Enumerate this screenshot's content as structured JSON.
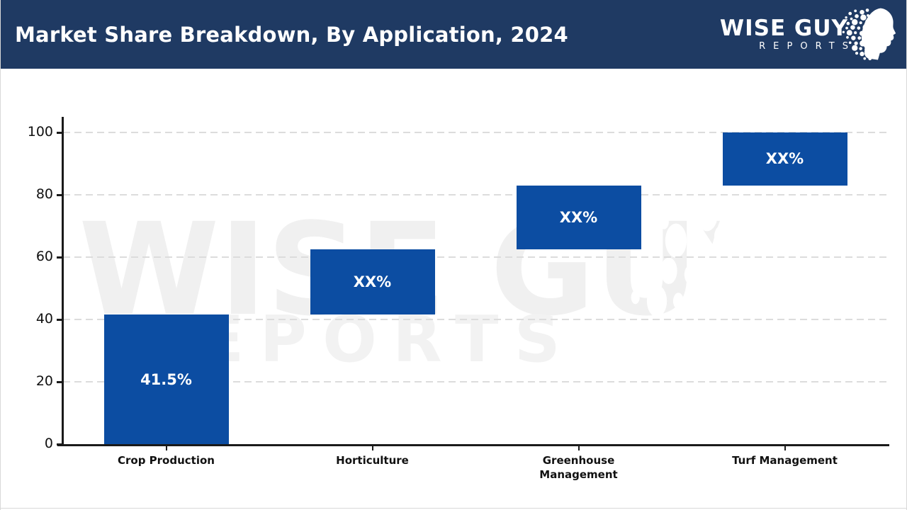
{
  "header": {
    "title": "Market Share Breakdown, By Application, 2024",
    "logo": {
      "wordmark": "WISE GUY",
      "subtitle": "REPORTS"
    }
  },
  "watermark": {
    "line1": "WISE GUY",
    "line2": "REPORTS"
  },
  "colors": {
    "header_bg": "#1F3A63",
    "title_text": "#FFFFFF",
    "background": "#FFFFFF",
    "bar_fill": "#0C4DA2",
    "bar_label": "#FFFFFF",
    "axis": "#1A1A1A",
    "tick_label": "#111111",
    "gridline": "#DCDCDC",
    "watermark": "#F0F0F0"
  },
  "chart_data": {
    "type": "bar",
    "subtype": "waterfall",
    "title": "Market Share Breakdown, By Application, 2024",
    "categories": [
      "Crop Production",
      "Horticulture",
      "Greenhouse\nManagement",
      "Turf Management"
    ],
    "bars": [
      {
        "category": "Crop Production",
        "start": 0,
        "end": 41.5,
        "label": "41.5%"
      },
      {
        "category": "Horticulture",
        "start": 41.5,
        "end": 62.5,
        "label": "XX%"
      },
      {
        "category": "Greenhouse\nManagement",
        "start": 62.5,
        "end": 83,
        "label": "XX%"
      },
      {
        "category": "Turf Management",
        "start": 83,
        "end": 100,
        "label": "XX%"
      }
    ],
    "ylim": [
      0,
      100
    ],
    "yticks": [
      0,
      20,
      40,
      60,
      80,
      100
    ],
    "grid": "horizontal dashed",
    "legend": "none",
    "value_unit": "%"
  }
}
